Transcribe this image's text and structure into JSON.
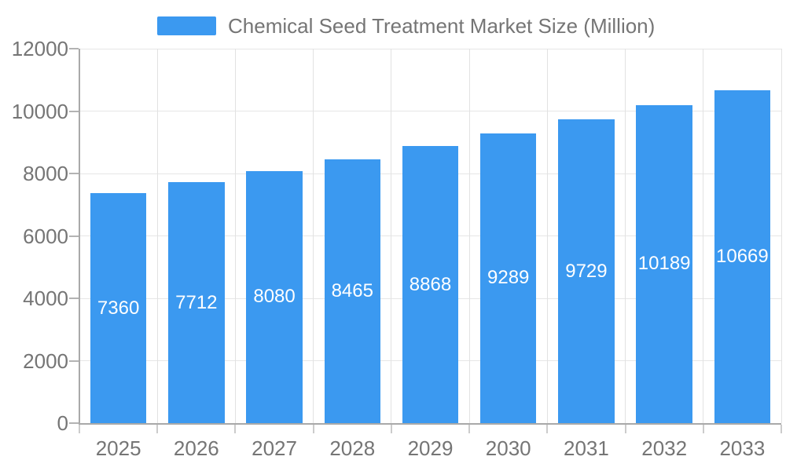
{
  "legend": {
    "label": "Chemical Seed Treatment Market Size (Million)"
  },
  "colors": {
    "bar": "#3B99F0",
    "axis_text": "#757575",
    "value_text": "#ffffff",
    "grid_h": "#e6e6e6",
    "grid_v": "#e2e2e2",
    "axis_line": "#a9a9a9"
  },
  "chart_data": {
    "type": "bar",
    "title": "Chemical Seed Treatment Market Size (Million)",
    "categories": [
      "2025",
      "2026",
      "2027",
      "2028",
      "2029",
      "2030",
      "2031",
      "2032",
      "2033"
    ],
    "values": [
      7360,
      7712,
      8080,
      8465,
      8868,
      9289,
      9729,
      10189,
      10669
    ],
    "xlabel": "",
    "ylabel": "",
    "ylim": [
      0,
      12000
    ],
    "yticks": [
      0,
      2000,
      4000,
      6000,
      8000,
      10000,
      12000
    ],
    "grid": true,
    "legend_position": "top",
    "value_label_position": "inside-center"
  }
}
